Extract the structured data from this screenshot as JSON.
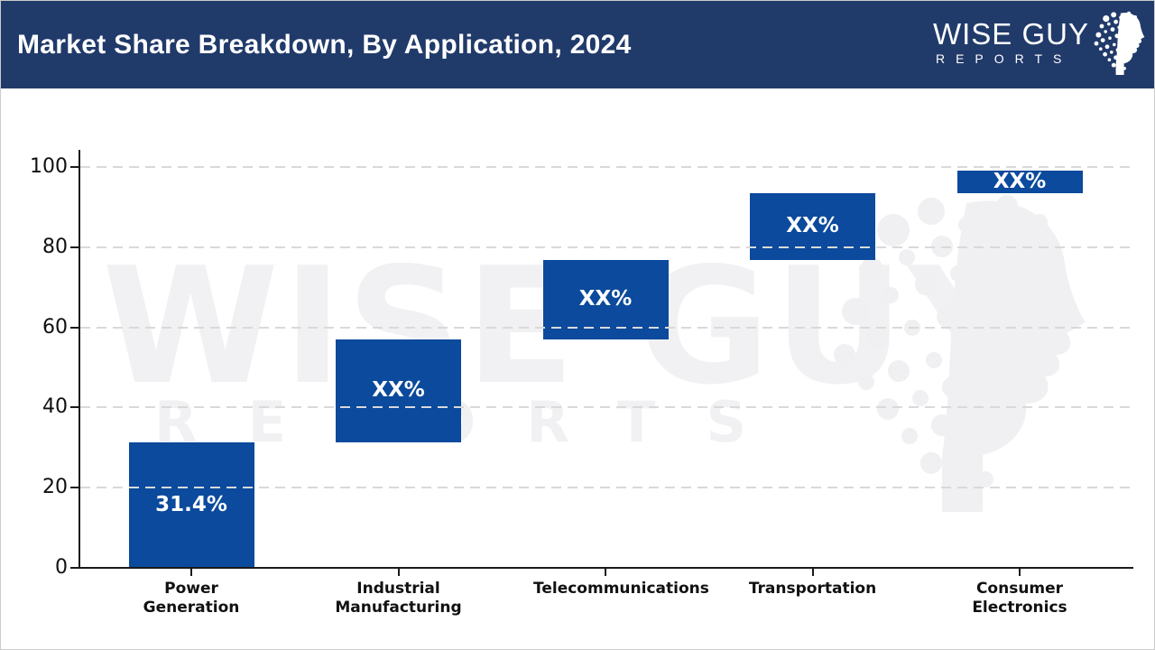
{
  "header": {
    "title": "Market Share Breakdown, By Application, 2024",
    "bg_color": "#203a6a",
    "logo": {
      "wordmark": "WISE GUY",
      "subtext": "REPORTS"
    }
  },
  "watermark": {
    "line1": "WISE GUY",
    "line2": "REPORTS"
  },
  "chart_data": {
    "type": "bar",
    "subtype": "waterfall",
    "title": "Market Share Breakdown, By Application, 2024",
    "categories": [
      "Power Generation",
      "Industrial Manufacturing",
      "Telecommunications",
      "Transportation",
      "Consumer Electronics"
    ],
    "segments": [
      {
        "category": "Power Generation",
        "label": "31.4%",
        "start": 0,
        "end": 31.4
      },
      {
        "category": "Industrial Manufacturing",
        "label": "XX%",
        "start": 31.4,
        "end": 57.0
      },
      {
        "category": "Telecommunications",
        "label": "XX%",
        "start": 57.0,
        "end": 76.8
      },
      {
        "category": "Transportation",
        "label": "XX%",
        "start": 76.8,
        "end": 93.5
      },
      {
        "category": "Consumer Electronics",
        "label": "XX%",
        "start": 93.5,
        "end": 99.0
      }
    ],
    "bar_labels": [
      "31.4%",
      "XX%",
      "XX%",
      "XX%",
      "XX%"
    ],
    "bar_color": "#0b4a9c",
    "value_label_color": "#ffffff",
    "yticks": [
      0,
      20,
      40,
      60,
      80,
      100
    ],
    "ylim": [
      0,
      105
    ],
    "xlabel": "",
    "ylabel": "",
    "grid": "horizontal-dashed",
    "gridline_color": "#d9d9d9",
    "legend": "none"
  }
}
